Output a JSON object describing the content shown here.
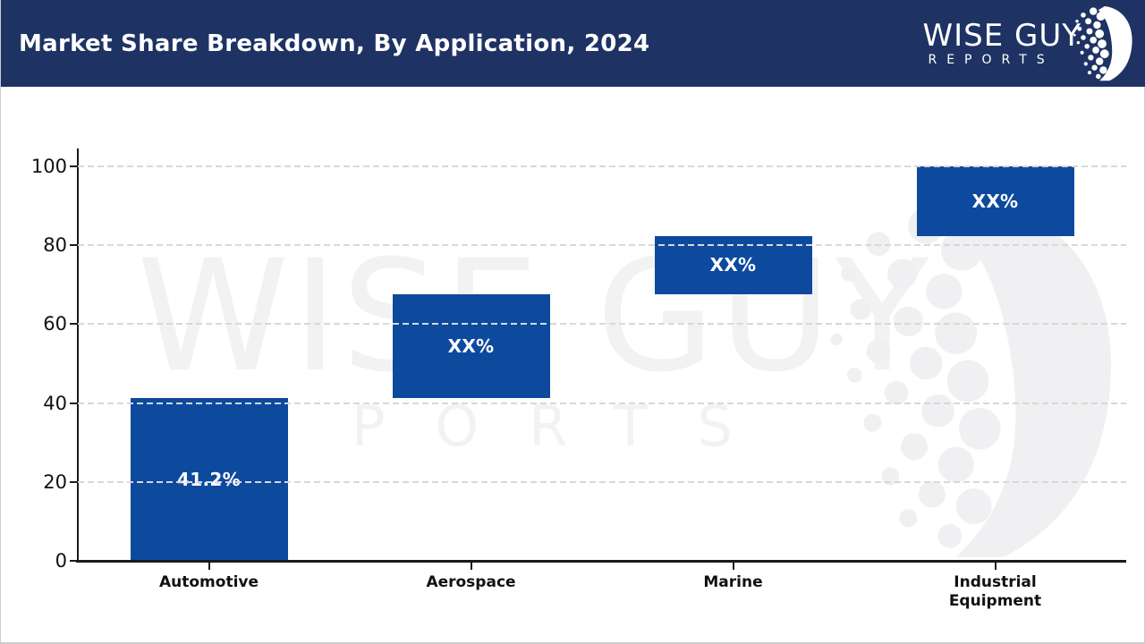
{
  "header": {
    "title": "Market Share Breakdown, By Application, 2024",
    "logo": {
      "wordmark": "WISE GUY",
      "subtext": "REPORTS"
    }
  },
  "watermark": {
    "line1": "WISE GUY",
    "line2": "PORTS"
  },
  "chart_data": {
    "type": "bar",
    "subtype": "waterfall",
    "title": "Market Share Breakdown, By Application, 2024",
    "categories": [
      "Automotive",
      "Aerospace",
      "Marine",
      "Industrial Equipment"
    ],
    "segments": [
      {
        "category": "Automotive",
        "start": 0,
        "end": 41.2,
        "size": 41.2,
        "label": "41.2%"
      },
      {
        "category": "Aerospace",
        "start": 41.2,
        "end": 67.6,
        "size": 26.4,
        "label": "XX%"
      },
      {
        "category": "Marine",
        "start": 67.6,
        "end": 82.4,
        "size": 14.8,
        "label": "XX%"
      },
      {
        "category": "Industrial Equipment",
        "start": 82.4,
        "end": 100,
        "size": 17.6,
        "label": "XX%"
      }
    ],
    "xlabel": "",
    "ylabel": "",
    "ylim": [
      0,
      100
    ],
    "yticks": [
      0,
      20,
      40,
      60,
      80,
      100
    ],
    "grid": "horizontal-dashed",
    "legend": "none",
    "bar_color": "#0d4a9e",
    "bar_label_color": "#ffffff"
  },
  "colors": {
    "header_bg": "#1e3364",
    "bar": "#0d4a9e",
    "axis": "#1a1a1a",
    "gridline": "#d8d8d8",
    "watermark": "#f2f2f2"
  }
}
